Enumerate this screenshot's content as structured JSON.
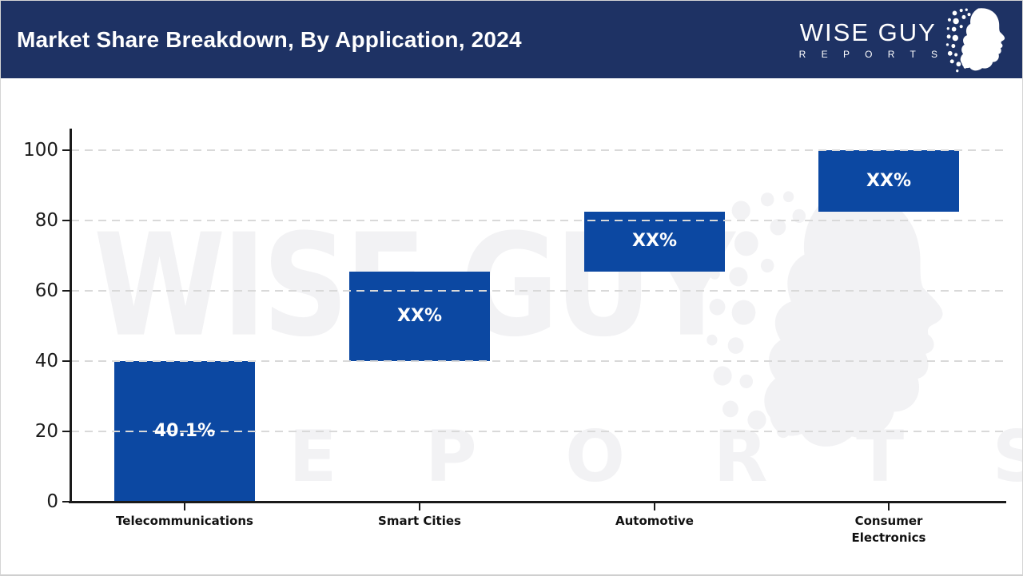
{
  "header": {
    "bg_color": "#1e3264",
    "title": "Market Share Breakdown, By Application, 2024",
    "logo": {
      "name": "WISE GUY",
      "tagline": "R E P O R T S"
    }
  },
  "chart_data": {
    "type": "bar",
    "variant": "waterfall",
    "title": "",
    "xlabel": "",
    "ylabel": "",
    "categories": [
      "Telecommunications",
      "Smart Cities",
      "Automotive",
      "Consumer Electronics"
    ],
    "x_tick_labels": [
      "Telecommunications",
      "Smart Cities",
      "Automotive",
      "Consumer\nElectronics"
    ],
    "segments": [
      {
        "category": "Telecommunications",
        "start": 0,
        "end": 40.1,
        "value": 40.1,
        "label": "40.1%"
      },
      {
        "category": "Smart Cities",
        "start": 40.1,
        "end": 65.5,
        "value": 25.4,
        "label": "XX%"
      },
      {
        "category": "Automotive",
        "start": 65.5,
        "end": 82.5,
        "value": 17.0,
        "label": "XX%"
      },
      {
        "category": "Consumer Electronics",
        "start": 82.5,
        "end": 100,
        "value": 17.5,
        "label": "XX%"
      }
    ],
    "y_ticks": [
      0,
      20,
      40,
      60,
      80,
      100
    ],
    "ylim": [
      0,
      107
    ],
    "grid": {
      "horizontal": true,
      "style": "dashed",
      "color": "#d9d9d9",
      "on_top": true
    },
    "legend": "none",
    "bar_color": "#0c48a2",
    "bar_label_color": "#ffffff",
    "axis_color": "#1a1a1a",
    "watermark": {
      "line1": "WISE GUY",
      "line2": "R E P O R T S",
      "color": "#f2f2f4"
    }
  }
}
